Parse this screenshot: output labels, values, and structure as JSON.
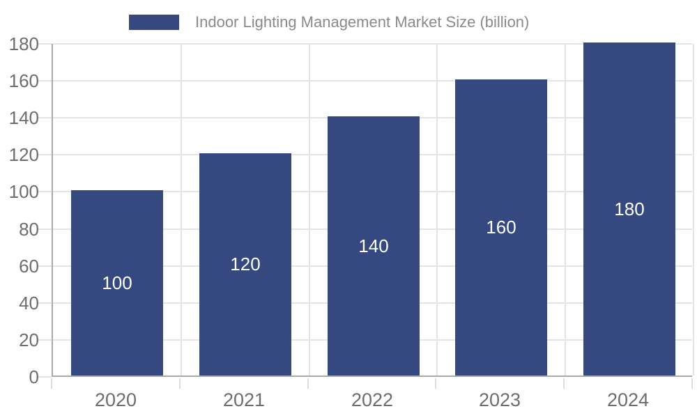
{
  "legend": {
    "label": "Indoor Lighting Management Market Size (billion)"
  },
  "colors": {
    "bar": "#354880",
    "legend_text": "#8a8a8a",
    "tick_text": "#6d6d6d",
    "grid": "#e4e4e4",
    "axis": "#a9a9a9",
    "value_label": "#ffffff",
    "background": "#ffffff"
  },
  "chart_data": {
    "type": "bar",
    "title": "Indoor Lighting Management Market Size (billion)",
    "categories": [
      "2020",
      "2021",
      "2022",
      "2023",
      "2024"
    ],
    "values": [
      100,
      120,
      140,
      160,
      180
    ],
    "value_labels": [
      "100",
      "120",
      "140",
      "160",
      "180"
    ],
    "xlabel": "",
    "ylabel": "",
    "ylim": [
      0,
      180
    ],
    "yticks": [
      0,
      20,
      40,
      60,
      80,
      100,
      120,
      140,
      160,
      180
    ],
    "grid": true,
    "legend_position": "top",
    "bar_labels": "inside-center"
  }
}
